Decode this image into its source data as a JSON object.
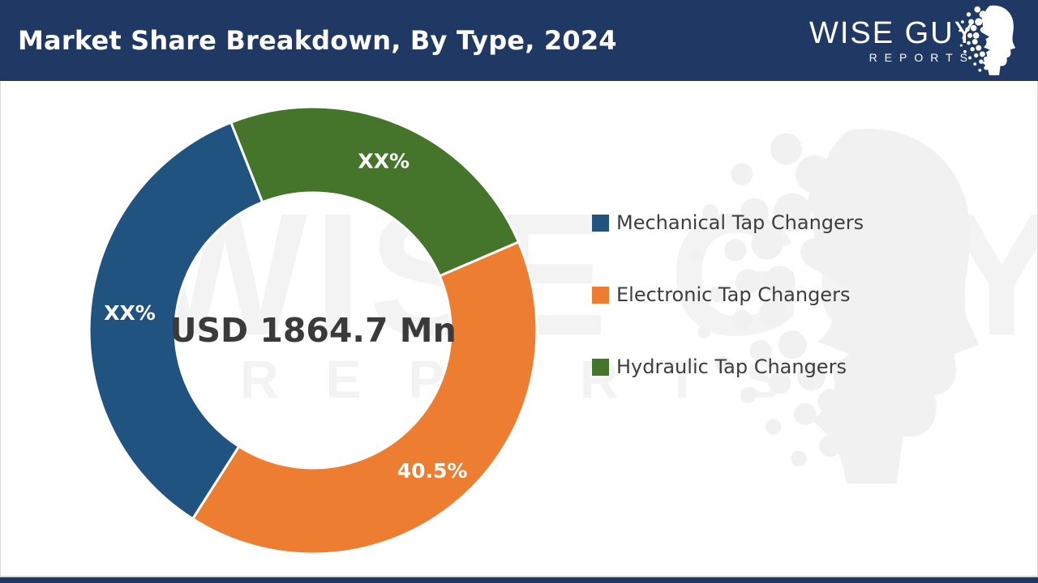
{
  "header": {
    "title": "Market Share Breakdown, By Type, 2024",
    "logo": {
      "primary": "WISE GUY",
      "secondary": "REPORTS"
    }
  },
  "watermark": {
    "primary": "WISE GUY",
    "secondary": "REPORTS"
  },
  "chart_data": {
    "type": "pie",
    "subtype": "donut",
    "center_label": "USD 1864.7 Mn",
    "inner_radius_ratio": 0.615,
    "start_angle_deg": 111.5,
    "direction": "counterclockwise",
    "legend_position": "right",
    "segments": [
      {
        "label": "Mechanical Tap Changers",
        "value_pct": 35.0,
        "display_label": "XX%",
        "color": "#205380"
      },
      {
        "label": "Electronic Tap Changers",
        "value_pct": 40.5,
        "display_label": "40.5%",
        "color": "#ED7D31"
      },
      {
        "label": "Hydraulic Tap Changers",
        "value_pct": 24.5,
        "display_label": "XX%",
        "color": "#44752B"
      }
    ]
  },
  "colors": {
    "header_bg": "#203864",
    "footer_bar": "#203864",
    "center_text": "#3A3A3A",
    "legend_text": "#3D3D3D",
    "watermark": "#F3F3F3",
    "border_line": "#D9D9D9",
    "slice_label_text": "#FFFFFF",
    "separator": "#FFFFFF"
  }
}
